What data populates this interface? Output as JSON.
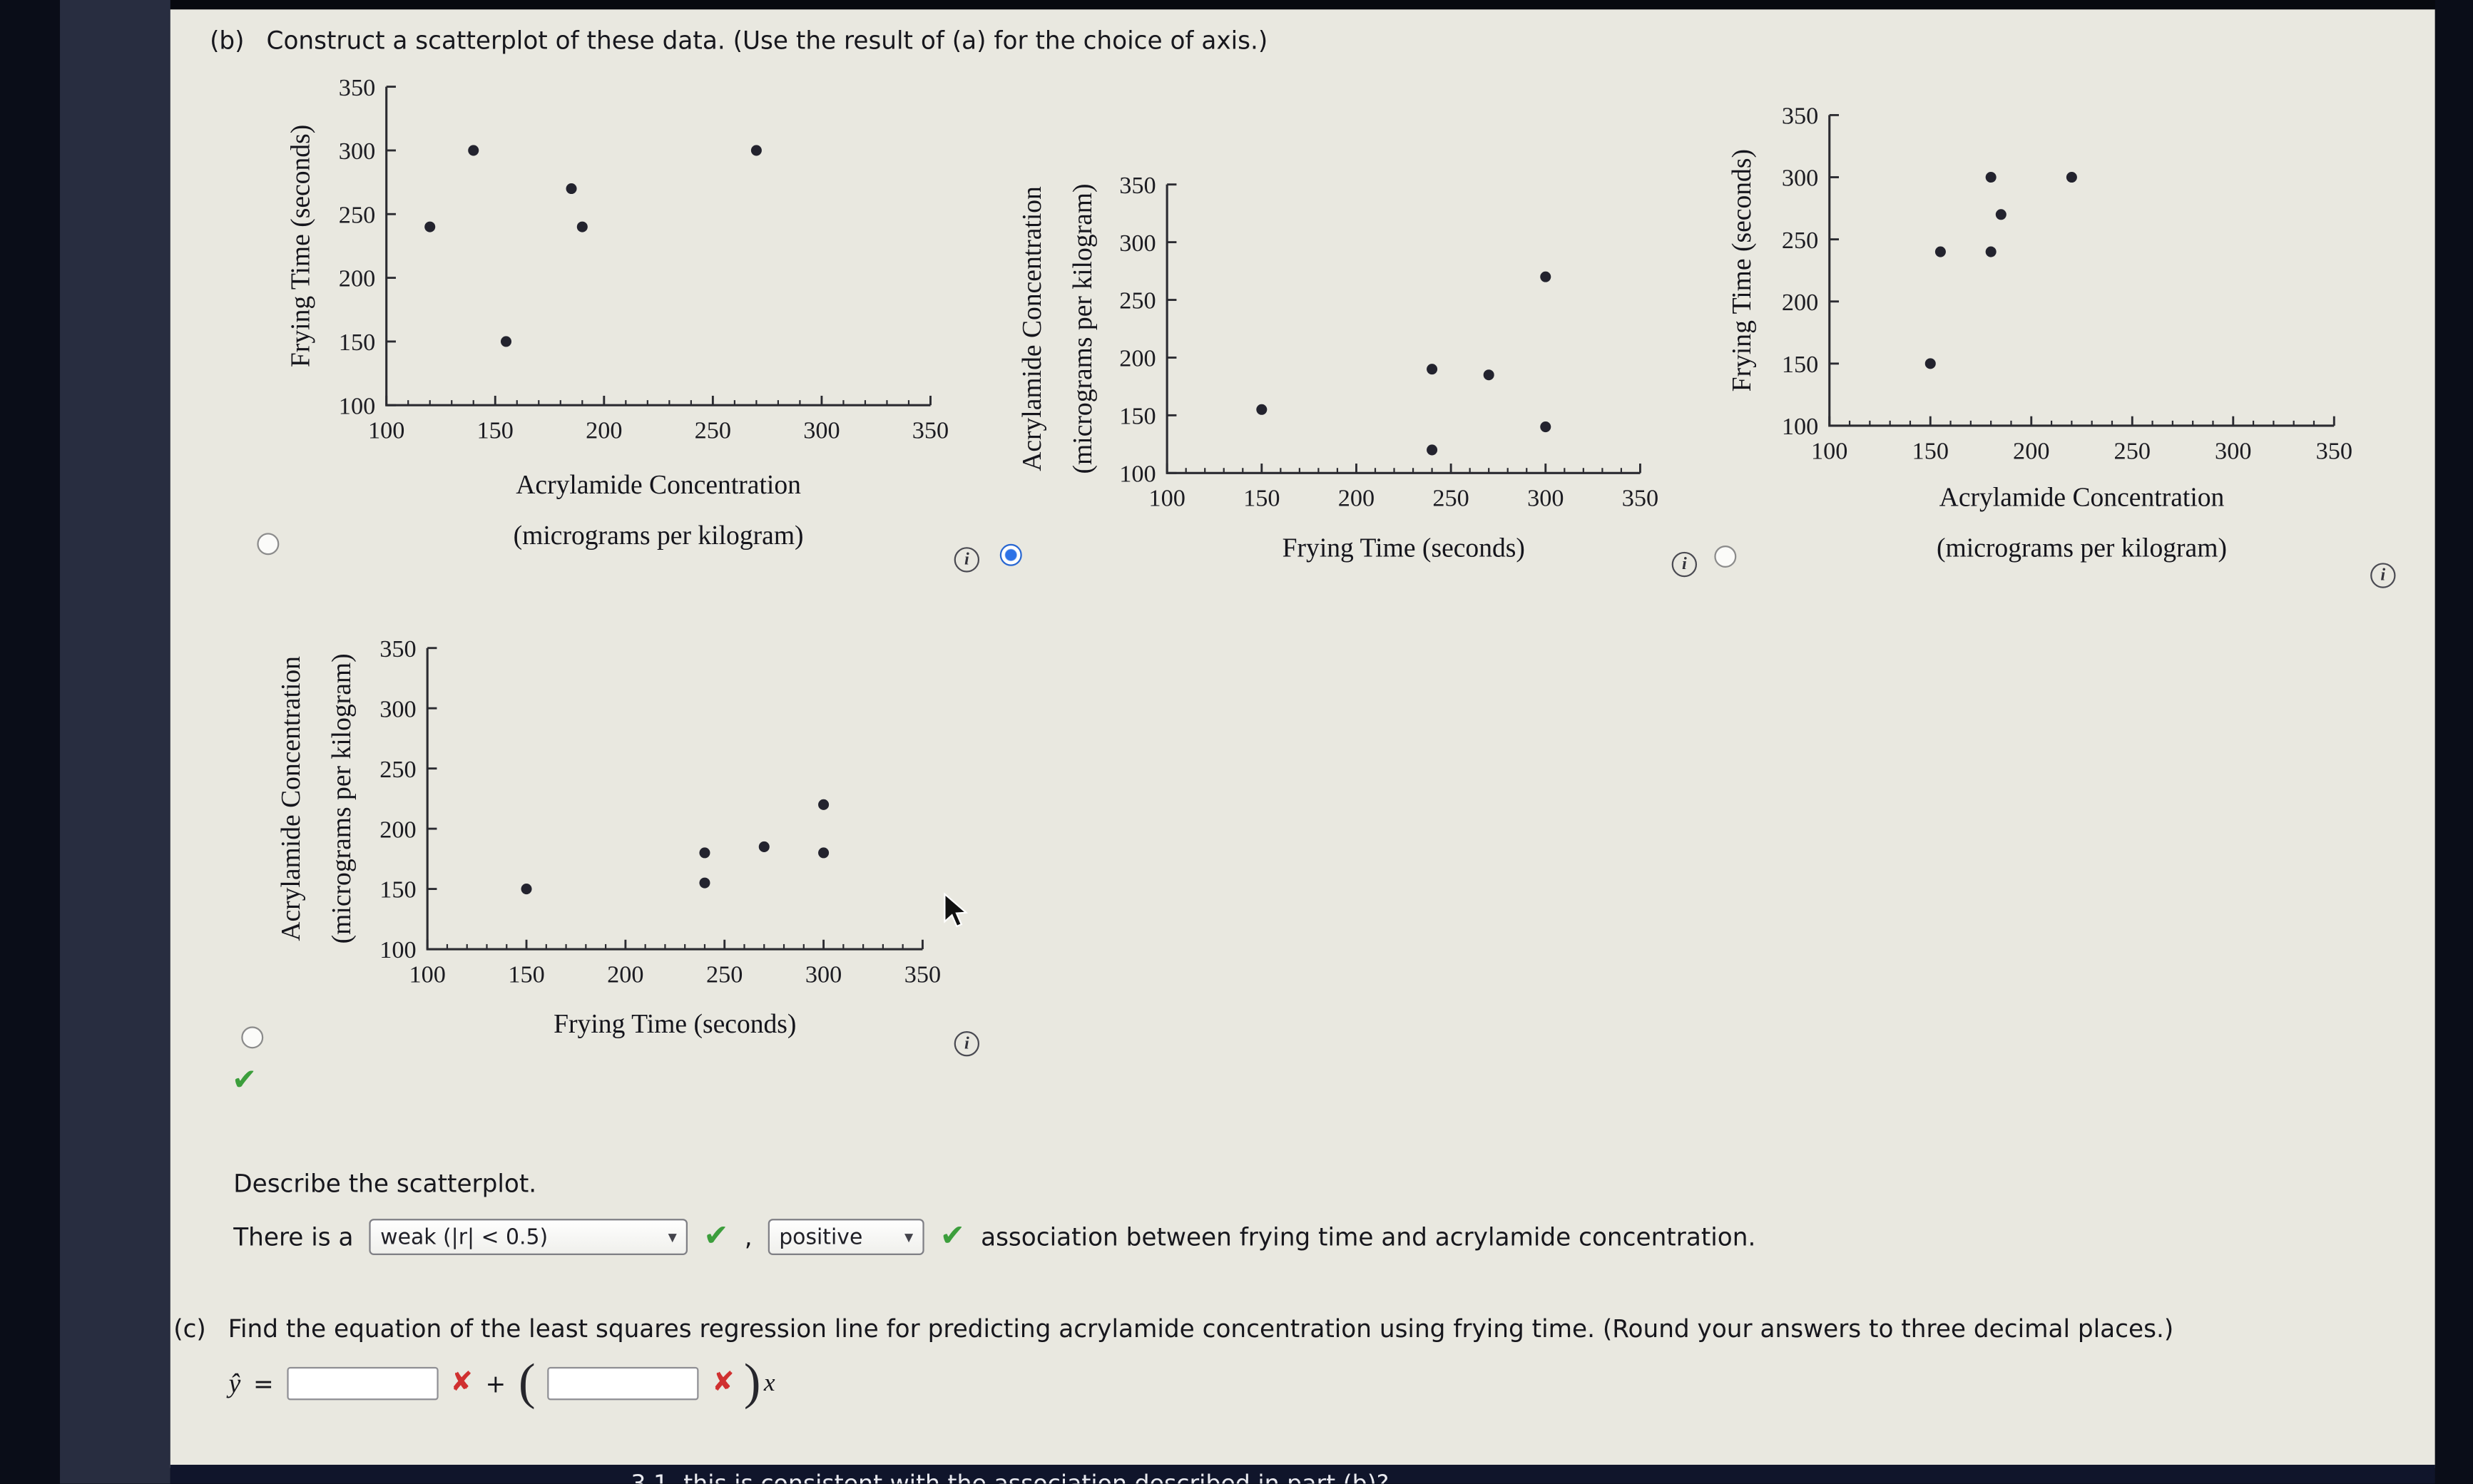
{
  "colors": {
    "content_bg": "#e9e8e0",
    "chrome_dark": "#0a0d18",
    "chrome_band": "#282d40",
    "radio_selected_blue": "#2e72e6",
    "correct_green": "#3c9e3c",
    "incorrect_red": "#d03030",
    "point_color": "#23232e"
  },
  "question_b": {
    "label": "(b)",
    "text": "Construct a scatterplot of these data. (Use the result of (a) for the choice of axis.)"
  },
  "options": {
    "selected_index": 1,
    "count": 4,
    "group_result_mark": "correct"
  },
  "chart_data": [
    {
      "type": "scatter",
      "xlabel": [
        "Acrylamide Concentration",
        "(micrograms per kilogram)"
      ],
      "ylabel": [
        "Frying Time (seconds)"
      ],
      "xlim": [
        100,
        350
      ],
      "ylim": [
        100,
        350
      ],
      "xticks": [
        100,
        150,
        200,
        250,
        300,
        350
      ],
      "yticks": [
        100,
        150,
        200,
        250,
        300,
        350
      ],
      "x_minor_step": 10,
      "grid": false,
      "points": [
        [
          155,
          150
        ],
        [
          120,
          240
        ],
        [
          190,
          240
        ],
        [
          185,
          270
        ],
        [
          140,
          300
        ],
        [
          270,
          300
        ]
      ]
    },
    {
      "type": "scatter",
      "xlabel": [
        "Frying Time (seconds)"
      ],
      "ylabel": [
        "Acrylamide Concentration",
        "(micrograms per kilogram)"
      ],
      "xlim": [
        100,
        350
      ],
      "ylim": [
        100,
        350
      ],
      "xticks": [
        100,
        150,
        200,
        250,
        300,
        350
      ],
      "yticks": [
        100,
        150,
        200,
        250,
        300,
        350
      ],
      "x_minor_step": 10,
      "grid": false,
      "points": [
        [
          150,
          155
        ],
        [
          240,
          120
        ],
        [
          240,
          190
        ],
        [
          270,
          185
        ],
        [
          300,
          140
        ],
        [
          300,
          270
        ]
      ]
    },
    {
      "type": "scatter",
      "xlabel": [
        "Acrylamide Concentration",
        "(micrograms per kilogram)"
      ],
      "ylabel": [
        "Frying Time (seconds)"
      ],
      "xlim": [
        100,
        350
      ],
      "ylim": [
        100,
        350
      ],
      "xticks": [
        100,
        150,
        200,
        250,
        300,
        350
      ],
      "yticks": [
        100,
        150,
        200,
        250,
        300,
        350
      ],
      "x_minor_step": 10,
      "grid": false,
      "points": [
        [
          150,
          150
        ],
        [
          155,
          240
        ],
        [
          180,
          240
        ],
        [
          185,
          270
        ],
        [
          180,
          300
        ],
        [
          220,
          300
        ]
      ]
    },
    {
      "type": "scatter",
      "xlabel": [
        "Frying Time (seconds)"
      ],
      "ylabel": [
        "Acrylamide Concentration",
        "(micrograms per kilogram)"
      ],
      "xlim": [
        100,
        350
      ],
      "ylim": [
        100,
        350
      ],
      "xticks": [
        100,
        150,
        200,
        250,
        300,
        350
      ],
      "yticks": [
        100,
        150,
        200,
        250,
        300,
        350
      ],
      "x_minor_step": 10,
      "grid": false,
      "points": [
        [
          150,
          150
        ],
        [
          240,
          155
        ],
        [
          240,
          180
        ],
        [
          270,
          185
        ],
        [
          300,
          180
        ],
        [
          300,
          220
        ]
      ]
    }
  ],
  "describe": {
    "prompt": "Describe the scatterplot.",
    "prefix": "There is a",
    "dropdown1": "weak (|r| < 0.5)",
    "comma": ",",
    "dropdown2": "positive",
    "suffix": "association between frying time and acrylamide concentration."
  },
  "question_c": {
    "label": "(c)",
    "text": "Find the equation of the least squares regression line for predicting acrylamide concentration using frying time. (Round your answers to three decimal places.)",
    "formula": {
      "yhat": "ŷ",
      "equals": "=",
      "input1": "",
      "plus": "+",
      "open_paren": "(",
      "input2": "",
      "close_paren": ")",
      "x_var": "x"
    }
  },
  "marks": {
    "correct": "✔",
    "incorrect": "✘"
  },
  "icons": {
    "info": "i",
    "dropdown_arrow": "▾"
  },
  "bottom_bar": {
    "clipped_text": "3.1, this is consistent with the association described in part (b)?"
  }
}
